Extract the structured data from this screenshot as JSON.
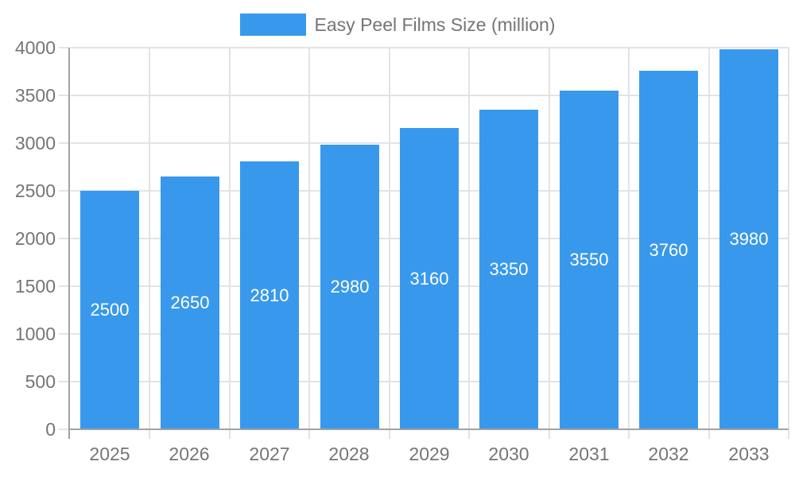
{
  "legend": {
    "label": "Easy Peel Films Size (million)"
  },
  "chart_data": {
    "type": "bar",
    "title": "",
    "series_name": "Easy Peel Films Size (million)",
    "categories": [
      "2025",
      "2026",
      "2027",
      "2028",
      "2029",
      "2030",
      "2031",
      "2032",
      "2033"
    ],
    "values": [
      2500,
      2650,
      2810,
      2980,
      3160,
      3350,
      3550,
      3760,
      3980
    ],
    "xlabel": "",
    "ylabel": "",
    "ylim": [
      0,
      4000
    ],
    "yticks": [
      0,
      500,
      1000,
      1500,
      2000,
      2500,
      3000,
      3500,
      4000
    ],
    "grid": true,
    "value_labels": "inside-center-white",
    "legend_position": "top-center",
    "colors": {
      "bar": "#3899EC",
      "value_label": "#ffffff",
      "axis_text": "#757575",
      "grid_line": "#e3e3e3",
      "axis_line": "#a2a2a2"
    }
  }
}
